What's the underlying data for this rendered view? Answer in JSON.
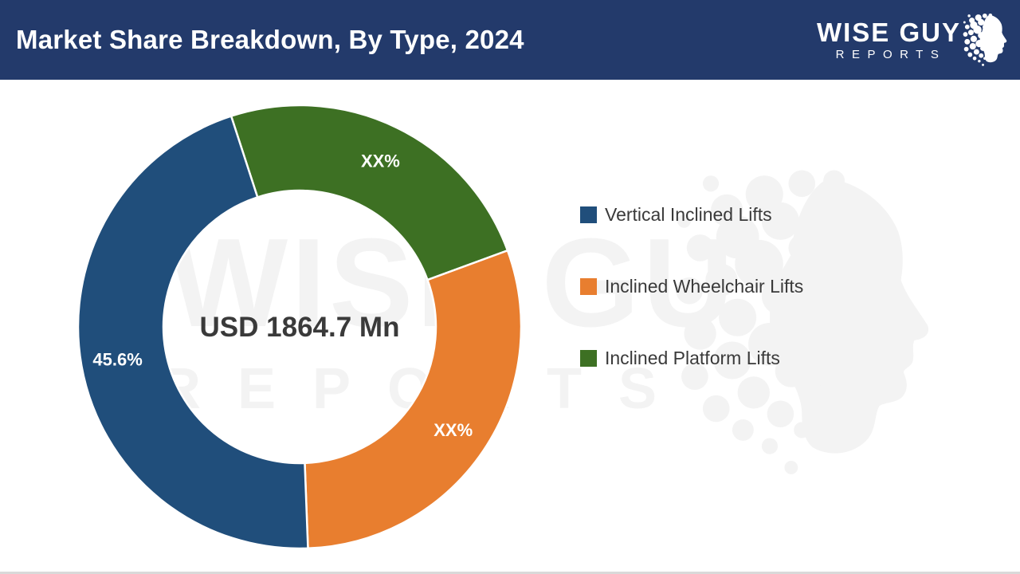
{
  "header": {
    "title": "Market Share Breakdown, By Type, 2024",
    "logo": {
      "line1": "WISE GUY",
      "line2": "REPORTS"
    }
  },
  "watermark": {
    "line1": "WISE GUY",
    "line2": "REPORTS"
  },
  "chart_data": {
    "type": "donut",
    "title": "Market Share Breakdown, By Type, 2024",
    "center_label": "USD 1864.7 Mn",
    "start_angle_deg": 342,
    "inner_radius_ratio": 0.615,
    "series": [
      {
        "name": "Inclined Platform Lifts",
        "value_pct": 24.4,
        "data_label": "XX%",
        "color": "#3d7023"
      },
      {
        "name": "Inclined Wheelchair Lifts",
        "value_pct": 30.0,
        "data_label": "XX%",
        "color": "#e87e2f"
      },
      {
        "name": "Vertical Inclined Lifts",
        "value_pct": 45.6,
        "data_label": "45.6%",
        "color": "#204e7b"
      }
    ],
    "legend_order": [
      2,
      1,
      0
    ],
    "legend_position": "right",
    "gridlines": false
  },
  "colors": {
    "header_bg": "#233a6b",
    "text_dark": "#3a3a3a",
    "watermark": "#f3f3f3",
    "bottom_line": "#d9d9d9",
    "label_text": "#ffffff"
  }
}
